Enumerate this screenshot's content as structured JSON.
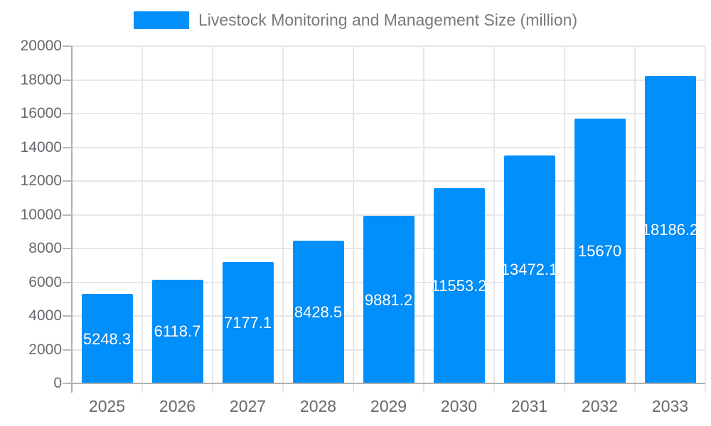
{
  "legend": {
    "label": "Livestock Monitoring and Management Size (million)"
  },
  "chart_data": {
    "type": "bar",
    "title": "Livestock Monitoring and Management Size (million)",
    "categories": [
      "2025",
      "2026",
      "2027",
      "2028",
      "2029",
      "2030",
      "2031",
      "2032",
      "2033"
    ],
    "values": [
      5248.3,
      6118.7,
      7177.1,
      8428.5,
      9881.2,
      11553.2,
      13472.1,
      15670,
      18186.2
    ],
    "value_labels": [
      "5248.3",
      "6118.7",
      "7177.1",
      "8428.5",
      "9881.2",
      "11553.2",
      "13472.1",
      "15670",
      "18186.2"
    ],
    "xlabel": "",
    "ylabel": "",
    "ylim": [
      0,
      20000
    ],
    "ytick_step": 2000,
    "yticks": [
      0,
      2000,
      4000,
      6000,
      8000,
      10000,
      12000,
      14000,
      16000,
      18000,
      20000
    ],
    "grid": true,
    "legend_position": "top",
    "colors": {
      "bar": "#008FFB",
      "grid": "#e7e7e7",
      "axis": "#b0b0b0",
      "axis_label_text": "#66696d",
      "legend_text": "#77797b",
      "datalabel_text": "#ffffff"
    }
  }
}
